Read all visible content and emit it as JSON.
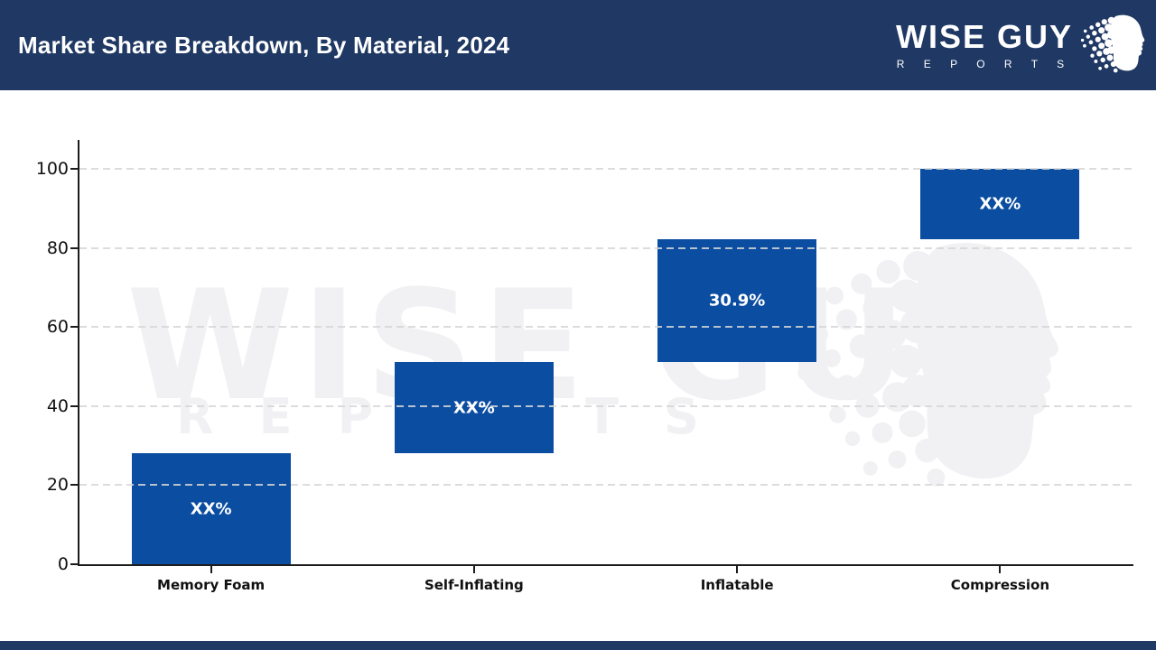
{
  "header": {
    "title": "Market Share Breakdown, By Material, 2024",
    "brand": {
      "name": "WISE GUY",
      "reports": "R E P O R T S"
    }
  },
  "watermark": {
    "line1": "WISE GUY",
    "line2": "REPORTS"
  },
  "icons": {
    "brand_head": "dotted-head-profile-icon"
  },
  "colors": {
    "header_bg": "#1f3864",
    "footer_bg": "#1f3864",
    "bar": "#0b4da1",
    "bar_label": "#ffffff",
    "gridline": "#d6d6d6",
    "axis": "#1c1c1c",
    "watermark": "#f1f1f4"
  },
  "chart_data": {
    "type": "bar",
    "subtype": "waterfall-floating-bars",
    "title": "Market Share Breakdown, By Material, 2024",
    "xlabel": "",
    "ylabel": "",
    "ylim": [
      0,
      100
    ],
    "yticks": [
      0,
      20,
      40,
      60,
      80,
      100
    ],
    "grid": "horizontal dashed",
    "legend": "none",
    "categories": [
      "Memory Foam",
      "Self-Inflating",
      "Inflatable",
      "Compression"
    ],
    "segments": [
      {
        "category": "Memory Foam",
        "start": 0,
        "end": 28.0,
        "label": "XX%"
      },
      {
        "category": "Self-Inflating",
        "start": 28.0,
        "end": 51.2,
        "label": "XX%"
      },
      {
        "category": "Inflatable",
        "start": 51.2,
        "end": 82.1,
        "label": "30.9%"
      },
      {
        "category": "Compression",
        "start": 82.1,
        "end": 100.0,
        "label": "XX%"
      }
    ]
  }
}
